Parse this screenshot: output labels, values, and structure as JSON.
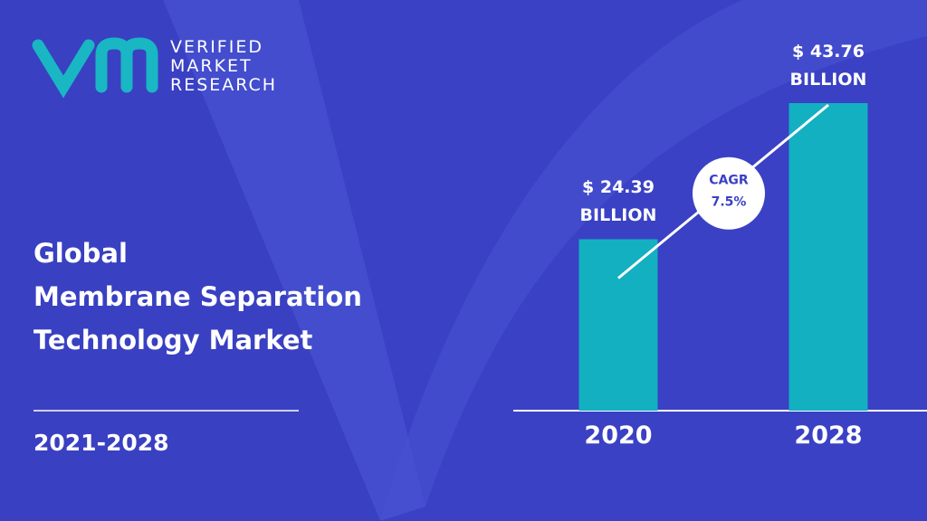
{
  "logo": {
    "lines": [
      "VERIFIED",
      "MARKET",
      "RESEARCH"
    ]
  },
  "title_lines": [
    "Global",
    "Membrane Separation",
    "Technology Market"
  ],
  "period": "2021-2028",
  "chart_data": {
    "type": "bar",
    "categories": [
      "2020",
      "2028"
    ],
    "values": [
      24.39,
      43.76
    ],
    "value_labels": [
      "$ 24.39 BILLION",
      "$ 43.76 BILLION"
    ],
    "color": "#12b0c0",
    "annotation": {
      "label": "CAGR",
      "value": "7.5%"
    }
  }
}
